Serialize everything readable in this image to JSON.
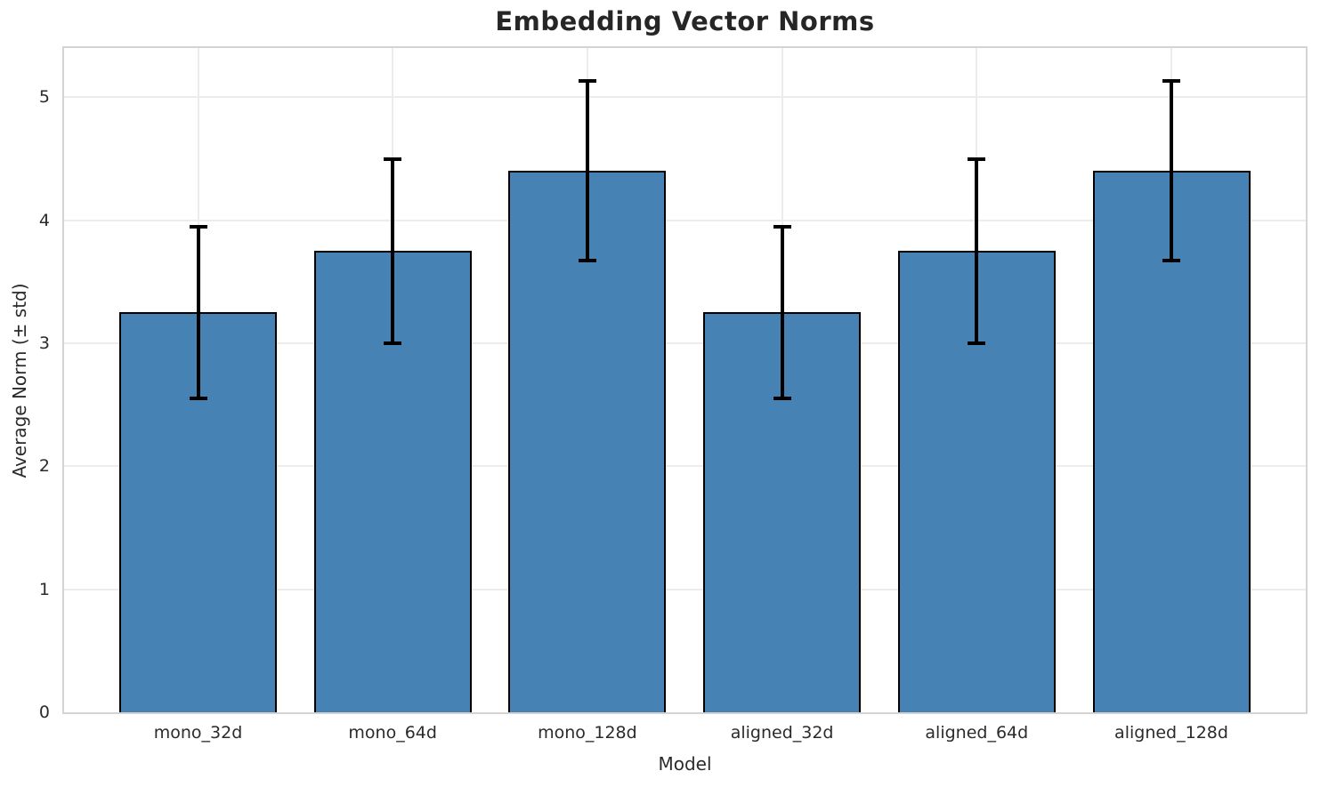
{
  "chart_data": {
    "type": "bar",
    "title": "Embedding Vector Norms",
    "xlabel": "Model",
    "ylabel": "Average Norm (± std)",
    "categories": [
      "mono_32d",
      "mono_64d",
      "mono_128d",
      "aligned_32d",
      "aligned_64d",
      "aligned_128d"
    ],
    "series": [
      {
        "name": "Average Norm",
        "values": [
          3.25,
          3.75,
          4.4,
          3.25,
          3.75,
          4.4
        ],
        "std": [
          0.7,
          0.75,
          0.73,
          0.7,
          0.75,
          0.73
        ]
      }
    ],
    "error_bars": true,
    "yticks": [
      0,
      1,
      2,
      3,
      4,
      5
    ],
    "ylim": [
      0,
      5.4
    ],
    "grid": true,
    "legend_position": "none",
    "colors": {
      "bar_fill": "#4682b4",
      "bar_edge": "#000000",
      "error_bar": "#000000",
      "grid_line": "#ececec",
      "spine": "#d4d4d4",
      "text": "#2b2b2b",
      "background": "#ffffff"
    }
  }
}
